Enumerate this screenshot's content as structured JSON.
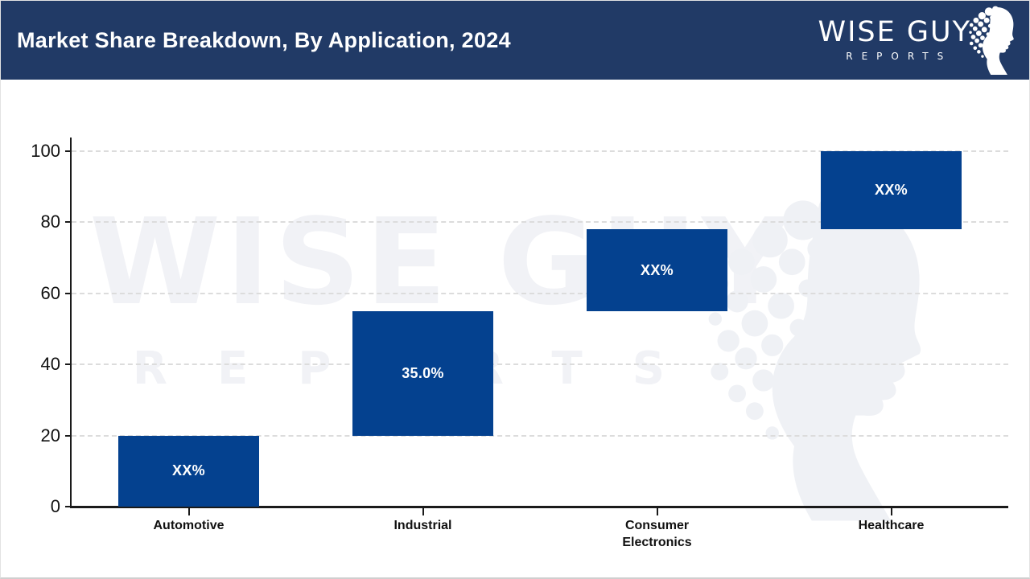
{
  "header": {
    "title": "Market Share Breakdown, By Application, 2024",
    "logo": {
      "line1": "WISE GUY",
      "line2": "REPORTS"
    }
  },
  "watermark": {
    "line1": "WISE GUY",
    "line2": "REPORTS"
  },
  "colors": {
    "header_bg": "#213a66",
    "bar": "#04418f",
    "gridline": "#dcdcdc",
    "axis": "#1a1a1a",
    "watermark_text": "#f1f2f6",
    "watermark_head": "#eff1f5"
  },
  "chart_data": {
    "type": "bar",
    "subtype": "floating-waterfall",
    "title": "Market Share Breakdown, By Application, 2024",
    "categories": [
      "Automotive",
      "Industrial",
      "Consumer Electronics",
      "Healthcare"
    ],
    "bars": [
      {
        "category": "Automotive",
        "start": 0,
        "end": 20,
        "label": "XX%"
      },
      {
        "category": "Industrial",
        "start": 20,
        "end": 55,
        "label": "35.0%"
      },
      {
        "category": "Consumer Electronics",
        "start": 55,
        "end": 78,
        "label": "XX%"
      },
      {
        "category": "Healthcare",
        "start": 78,
        "end": 100,
        "label": "XX%"
      }
    ],
    "bar_color": "#04418f",
    "ylim": [
      0,
      100
    ],
    "yticks": [
      0,
      20,
      40,
      60,
      80,
      100
    ],
    "xlabel": "",
    "ylabel": "",
    "grid": "horizontal-dashed",
    "legend": "none"
  }
}
